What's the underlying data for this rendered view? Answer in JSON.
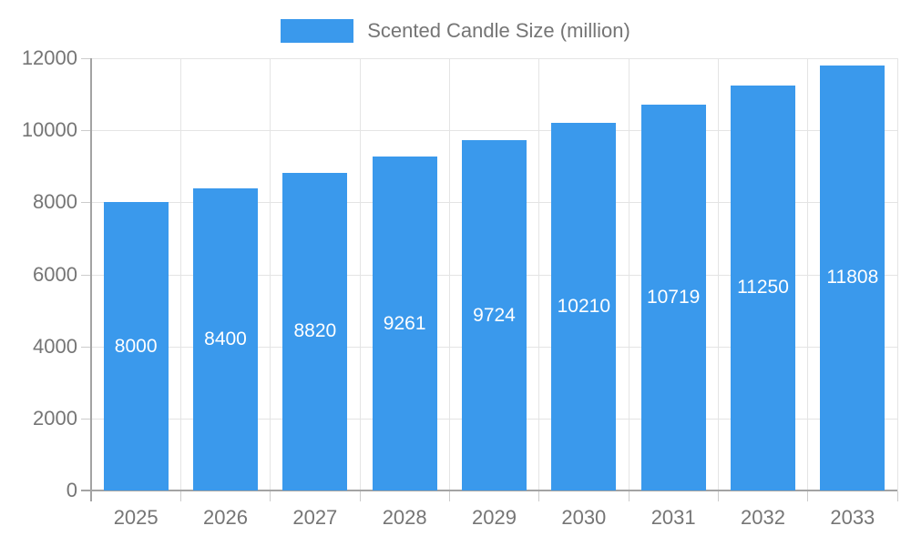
{
  "chart_data": {
    "type": "bar",
    "title": "",
    "series_label": "Scented Candle Size (million)",
    "categories": [
      "2025",
      "2026",
      "2027",
      "2028",
      "2029",
      "2030",
      "2031",
      "2032",
      "2033"
    ],
    "values": [
      8000,
      8400,
      8820,
      9261,
      9724,
      10210,
      10719,
      11250,
      11808
    ],
    "xlabel": "",
    "ylabel": "",
    "ylim": [
      0,
      12000
    ],
    "yticks": [
      0,
      2000,
      4000,
      6000,
      8000,
      10000,
      12000
    ],
    "grid": true,
    "legend_position": "top-center",
    "value_labels": "inside-center-white",
    "colors": {
      "bar": "#3a99ec",
      "value_label": "#ffffff",
      "axis_text": "#757575",
      "axis_line": "#a3a3a3",
      "gridline": "#e4e4e4",
      "tick": "#cccccc",
      "background": "#ffffff"
    }
  }
}
